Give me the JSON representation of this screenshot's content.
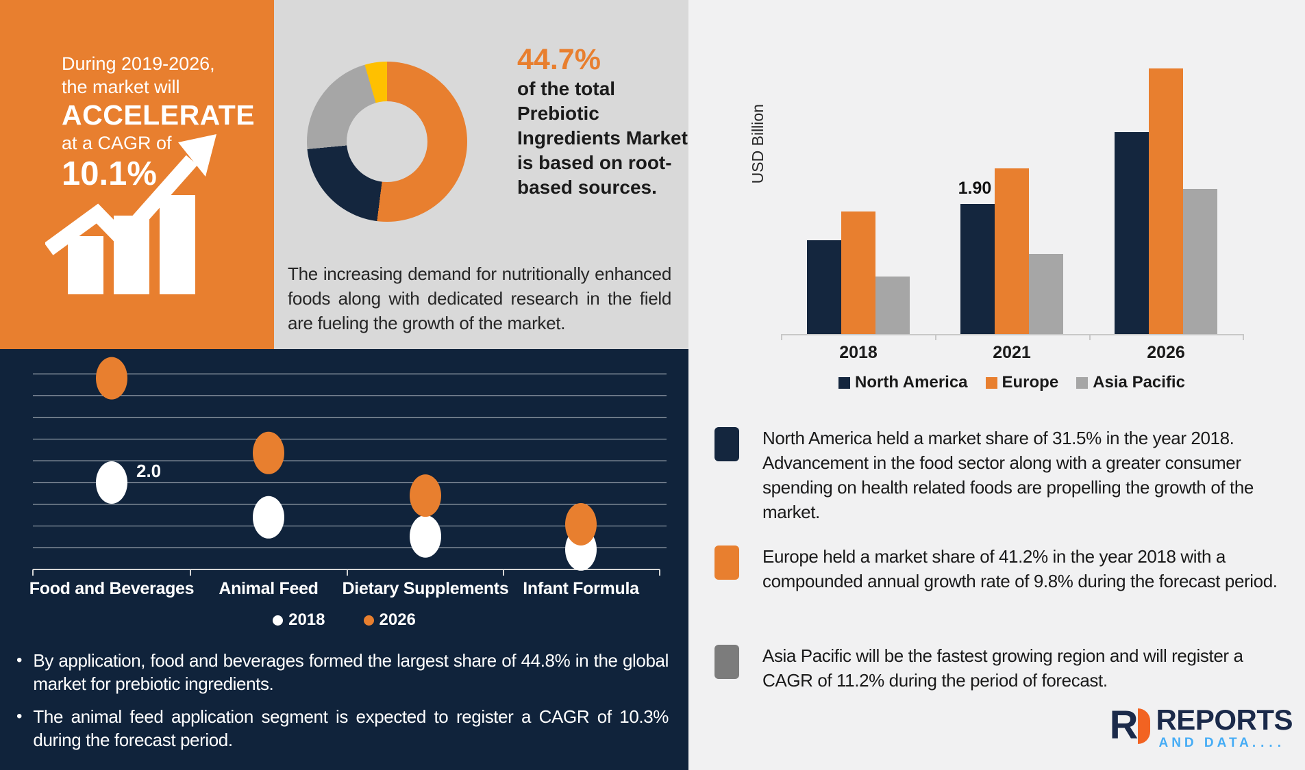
{
  "colors": {
    "orange": "#E87F2F",
    "navy": "#14263E",
    "navy_panel_bg": "#10233B",
    "gray": "#A6A6A6",
    "dark_gray": "#7C7C7C",
    "yellow": "#FFC000",
    "gray_panel_bg": "#D9D9D9",
    "right_panel_bg": "#F1F1F2",
    "logo_blue": "#45ACF5"
  },
  "accelerate_panel": {
    "intro_line1": "During 2019-2026,",
    "intro_line2": "the market will",
    "emphasis": "ACCELERATE",
    "cagr_prefix": "at a CAGR of",
    "cagr_value": "10.1%"
  },
  "source_panel": {
    "stat_value": "44.7%",
    "stat_lines": [
      "of the total",
      "Prebiotic",
      "Ingredients Market",
      "is based on root-",
      "based sources."
    ],
    "paragraph": "The increasing demand for nutritionally enhanced foods along with dedicated research in the field are fueling the growth of the market."
  },
  "application_panel": {
    "bullets": [
      "By application, food and beverages formed the largest share of 44.8% in the global market for prebiotic ingredients.",
      "The animal feed application segment is expected to register a CAGR of 10.3% during the forecast period."
    ]
  },
  "region_panel": {
    "bullets": [
      {
        "color": "#14263E",
        "text": "North America held a market share of 31.5% in the year 2018. Advancement in the food sector along with a greater consumer spending on health related foods are propelling the growth of the market."
      },
      {
        "color": "#E87F2F",
        "text": "Europe held a market share of 41.2% in the year 2018 with a compounded annual growth rate of 9.8% during the forecast period."
      },
      {
        "color": "#7C7C7C",
        "text": "Asia Pacific will be the fastest growing region and will register a CAGR of 11.2% during the period of forecast."
      }
    ]
  },
  "logo": {
    "mark_letter": "R",
    "reports": "REPORTS",
    "and_data": "AND DATA",
    "dots": "...."
  },
  "chart_data": [
    {
      "id": "source-donut",
      "type": "pie",
      "note": "44.7% of the total Prebiotic Ingredients Market is based on root-based sources.",
      "slices": [
        {
          "label": "orange-segment",
          "value": 52,
          "color": "#E87F2F"
        },
        {
          "label": "navy-segment",
          "value": 21.5,
          "color": "#14263E"
        },
        {
          "label": "gray-segment",
          "value": 22,
          "color": "#A6A6A6"
        },
        {
          "label": "yellow-segment",
          "value": 4.5,
          "color": "#FFC000"
        }
      ]
    },
    {
      "id": "regional-bars",
      "type": "bar",
      "ylabel": "USD Billion",
      "categories": [
        "2018",
        "2021",
        "2026"
      ],
      "series": [
        {
          "name": "North America",
          "color": "#14263E",
          "values": [
            1.37,
            1.9,
            2.95
          ]
        },
        {
          "name": "Europe",
          "color": "#E87F2F",
          "values": [
            1.79,
            2.42,
            3.88
          ]
        },
        {
          "name": "Asia Pacific",
          "color": "#A6A6A6",
          "values": [
            0.84,
            1.17,
            2.12
          ]
        }
      ],
      "data_labels": [
        {
          "series": "North America",
          "category": "2021",
          "text": "1.90"
        }
      ],
      "ylim": [
        0,
        4.1
      ],
      "grid": false,
      "legend_position": "bottom"
    },
    {
      "id": "application-dots",
      "type": "scatter",
      "categories": [
        "Food and Beverages",
        "Animal Feed",
        "Dietary Supplements",
        "Infant Formula"
      ],
      "series": [
        {
          "name": "2018",
          "color": "#FFFFFF",
          "values": [
            2.0,
            1.2,
            0.76,
            0.46
          ]
        },
        {
          "name": "2026",
          "color": "#E87F2F",
          "values": [
            4.4,
            2.68,
            1.7,
            1.04
          ]
        }
      ],
      "data_labels": [
        {
          "series": "2018",
          "category": "Food and Beverages",
          "text": "2.0"
        }
      ],
      "ylim": [
        0,
        4.75
      ],
      "gridline_step": 0.5,
      "grid": true,
      "legend_position": "bottom"
    }
  ]
}
